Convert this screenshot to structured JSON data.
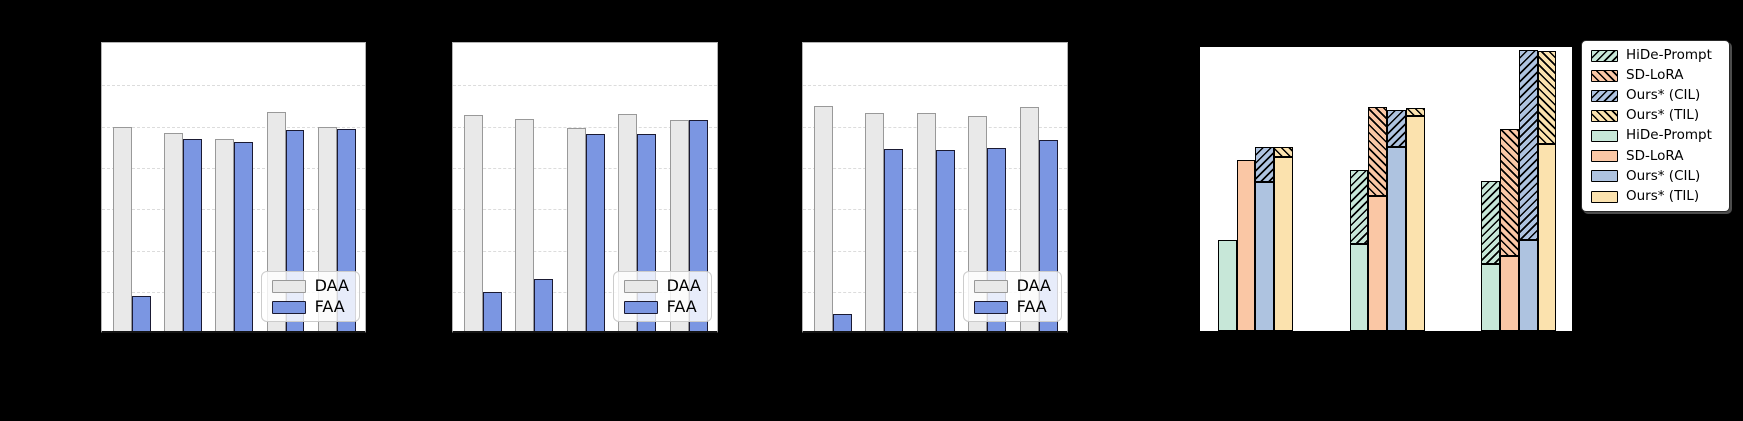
{
  "figure": {
    "background": "#000000",
    "panel_background": "#ffffff",
    "note": "Axis titles, tick labels and x-category labels are rendered in black on a black background and are not visible; bar values below are expressed as percent of plot height."
  },
  "colors": {
    "daa_fill": "#e9e9e9",
    "daa_edge": "#999999",
    "faa_fill": "#7b96e2",
    "faa_edge": "#1a1a33",
    "hide_prompt_fill": "#c7e7d8",
    "sd_lora_fill": "#fac7a5",
    "ours_cil_fill": "#aec3e0",
    "ours_til_fill": "#fbe2ae",
    "hatch_line": "#000000",
    "grid_line": "#dcdcdc"
  },
  "chart_data": [
    {
      "type": "bar",
      "panel": "subplot-1",
      "grid": true,
      "legend": [
        "DAA",
        "FAA"
      ],
      "legend_position": "lower right",
      "ylim": [
        0,
        100
      ],
      "categories": [
        "",
        "",
        "",
        "",
        ""
      ],
      "series": [
        {
          "name": "DAA",
          "values": [
            70.8,
            68.6,
            66.5,
            75.9,
            70.9
          ]
        },
        {
          "name": "FAA",
          "values": [
            12.1,
            66.8,
            65.5,
            69.7,
            70.2
          ]
        }
      ]
    },
    {
      "type": "bar",
      "panel": "subplot-2",
      "grid": true,
      "legend": [
        "DAA",
        "FAA"
      ],
      "legend_position": "lower right",
      "ylim": [
        0,
        100
      ],
      "categories": [
        "",
        "",
        "",
        "",
        ""
      ],
      "series": [
        {
          "name": "DAA",
          "values": [
            75.1,
            73.7,
            70.6,
            75.4,
            73.2
          ]
        },
        {
          "name": "FAA",
          "values": [
            13.4,
            18.1,
            68.5,
            68.4,
            73.4
          ]
        }
      ]
    },
    {
      "type": "bar",
      "panel": "subplot-3",
      "grid": true,
      "legend": [
        "DAA",
        "FAA"
      ],
      "legend_position": "lower right",
      "ylim": [
        0,
        100
      ],
      "categories": [
        "",
        "",
        "",
        "",
        ""
      ],
      "series": [
        {
          "name": "DAA",
          "values": [
            78.0,
            75.6,
            75.7,
            74.6,
            77.9
          ]
        },
        {
          "name": "FAA",
          "values": [
            5.8,
            63.3,
            63.0,
            63.4,
            66.4
          ]
        }
      ]
    },
    {
      "type": "bar",
      "subtype": "stacked",
      "panel": "subplot-4",
      "grid": false,
      "ylim": [
        0,
        100
      ],
      "categories": [
        "",
        "",
        ""
      ],
      "series": [
        {
          "name": "HiDe-Prompt",
          "fill": "#c7e7d8",
          "hatch": "\\",
          "solid": [
            31.9,
            30.8,
            23.6
          ],
          "hatched": [
            0,
            25.8,
            29.3
          ]
        },
        {
          "name": "SD-LoRA",
          "fill": "#fac7a5",
          "hatch": "/",
          "solid": [
            60.3,
            47.7,
            26.5
          ],
          "hatched": [
            0,
            31.1,
            44.6
          ]
        },
        {
          "name": "Ours* (CIL)",
          "fill": "#aec3e0",
          "hatch": "\\",
          "solid": [
            52.5,
            64.7,
            32.0
          ],
          "hatched": [
            12.4,
            13.0,
            66.8
          ]
        },
        {
          "name": "Ours* (TIL)",
          "fill": "#fbe2ae",
          "hatch": "/",
          "solid": [
            61.2,
            75.7,
            65.9
          ],
          "hatched": [
            3.7,
            3.0,
            32.6
          ]
        }
      ]
    }
  ],
  "main_legend": {
    "entries": [
      {
        "label": "HiDe-Prompt",
        "fill": "#c7e7d8",
        "hatch": "\\"
      },
      {
        "label": "SD-LoRA",
        "fill": "#fac7a5",
        "hatch": "/"
      },
      {
        "label": "Ours* (CIL)",
        "fill": "#aec3e0",
        "hatch": "\\"
      },
      {
        "label": "Ours* (TIL)",
        "fill": "#fbe2ae",
        "hatch": "/"
      },
      {
        "label": "HiDe-Prompt",
        "fill": "#c7e7d8",
        "hatch": null
      },
      {
        "label": "SD-LoRA",
        "fill": "#fac7a5",
        "hatch": null
      },
      {
        "label": "Ours* (CIL)",
        "fill": "#aec3e0",
        "hatch": null
      },
      {
        "label": "Ours* (TIL)",
        "fill": "#fbe2ae",
        "hatch": null
      }
    ]
  }
}
